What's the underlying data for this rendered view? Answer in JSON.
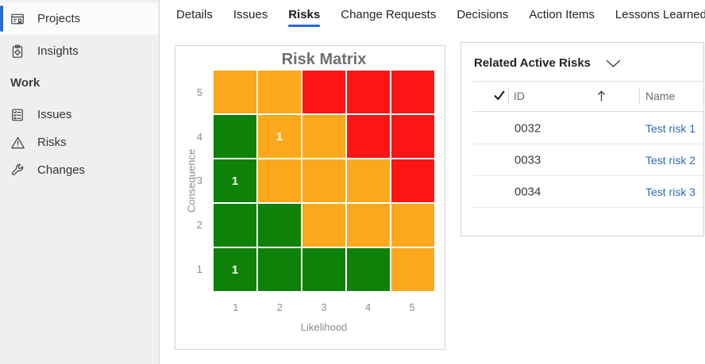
{
  "colors": {
    "accent": "#2a68d8",
    "link": "#2b6cb3",
    "green": "#0e8109",
    "orange": "#fba81c",
    "red": "#fc1513"
  },
  "sidebar": {
    "main_items": [
      {
        "label": "Projects",
        "icon": "projects-icon",
        "selected": true
      },
      {
        "label": "Insights",
        "icon": "insights-icon",
        "selected": false
      }
    ],
    "section_label": "Work",
    "work_items": [
      {
        "label": "Issues",
        "icon": "issues-icon",
        "selected": false
      },
      {
        "label": "Risks",
        "icon": "risks-icon",
        "selected": false
      },
      {
        "label": "Changes",
        "icon": "changes-icon",
        "selected": false
      }
    ]
  },
  "tabs": [
    {
      "label": "Details",
      "active": false
    },
    {
      "label": "Issues",
      "active": false
    },
    {
      "label": "Risks",
      "active": true
    },
    {
      "label": "Change Requests",
      "active": false
    },
    {
      "label": "Decisions",
      "active": false
    },
    {
      "label": "Action Items",
      "active": false
    },
    {
      "label": "Lessons Learned",
      "active": false
    }
  ],
  "chart_data": {
    "type": "heatmap",
    "title": "Risk Matrix",
    "xlabel": "Likelihood",
    "ylabel": "Consequence",
    "x_ticks": [
      "1",
      "2",
      "3",
      "4",
      "5"
    ],
    "y_ticks": [
      "5",
      "4",
      "3",
      "2",
      "1"
    ],
    "cell_colors": [
      [
        "orange",
        "orange",
        "red",
        "red",
        "red"
      ],
      [
        "green",
        "orange",
        "orange",
        "red",
        "red"
      ],
      [
        "green",
        "orange",
        "orange",
        "orange",
        "red"
      ],
      [
        "green",
        "green",
        "orange",
        "orange",
        "orange"
      ],
      [
        "green",
        "green",
        "green",
        "green",
        "orange"
      ]
    ],
    "cell_values": [
      [
        "",
        "",
        "",
        "",
        ""
      ],
      [
        "",
        "1",
        "",
        "",
        ""
      ],
      [
        "1",
        "",
        "",
        "",
        ""
      ],
      [
        "",
        "",
        "",
        "",
        ""
      ],
      [
        "1",
        "",
        "",
        "",
        ""
      ]
    ],
    "points": [
      {
        "likelihood": 2,
        "consequence": 4,
        "count": 1
      },
      {
        "likelihood": 1,
        "consequence": 3,
        "count": 1
      },
      {
        "likelihood": 1,
        "consequence": 1,
        "count": 1
      }
    ]
  },
  "panel": {
    "title": "Related Active Risks",
    "collapse_icon": "chevron-down-icon",
    "header": {
      "select_icon": "checkmark-icon",
      "id_label": "ID",
      "sort_icon": "arrow-up-icon",
      "name_label": "Name",
      "sort": {
        "column": "ID",
        "direction": "ascending"
      }
    },
    "rows": [
      {
        "id": "0032",
        "name": "Test risk 1"
      },
      {
        "id": "0033",
        "name": "Test risk 2"
      },
      {
        "id": "0034",
        "name": "Test risk 3"
      }
    ]
  }
}
